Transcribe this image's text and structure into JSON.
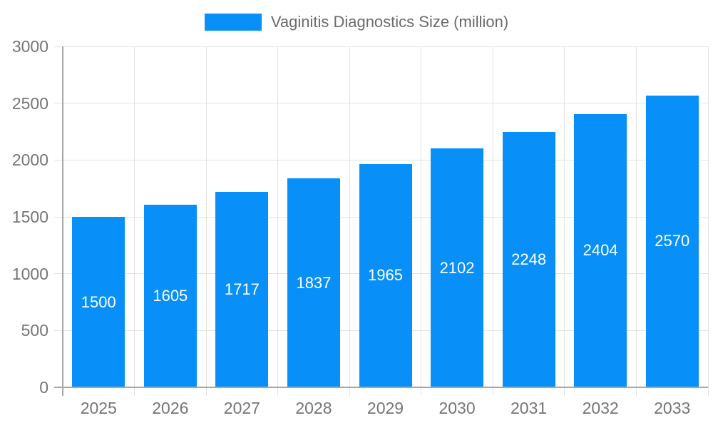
{
  "chart_data": {
    "type": "bar",
    "title": "Vaginitis Diagnostics Size (million)",
    "categories": [
      "2025",
      "2026",
      "2027",
      "2028",
      "2029",
      "2030",
      "2031",
      "2032",
      "2033"
    ],
    "values": [
      1500,
      1605,
      1717,
      1837,
      1965,
      2102,
      2248,
      2404,
      2570
    ],
    "xlabel": "",
    "ylabel": "",
    "ylim": [
      0,
      3000
    ],
    "ytick_step": 500,
    "grid": true,
    "legend_position": "top",
    "colors": {
      "bar": "#0890F8",
      "value_label": "#ffffff",
      "axis_label": "#757575",
      "legend_text": "#6b6b6b",
      "gridline": "#e3e3e3",
      "axis_line": "#a6a6a6"
    }
  }
}
